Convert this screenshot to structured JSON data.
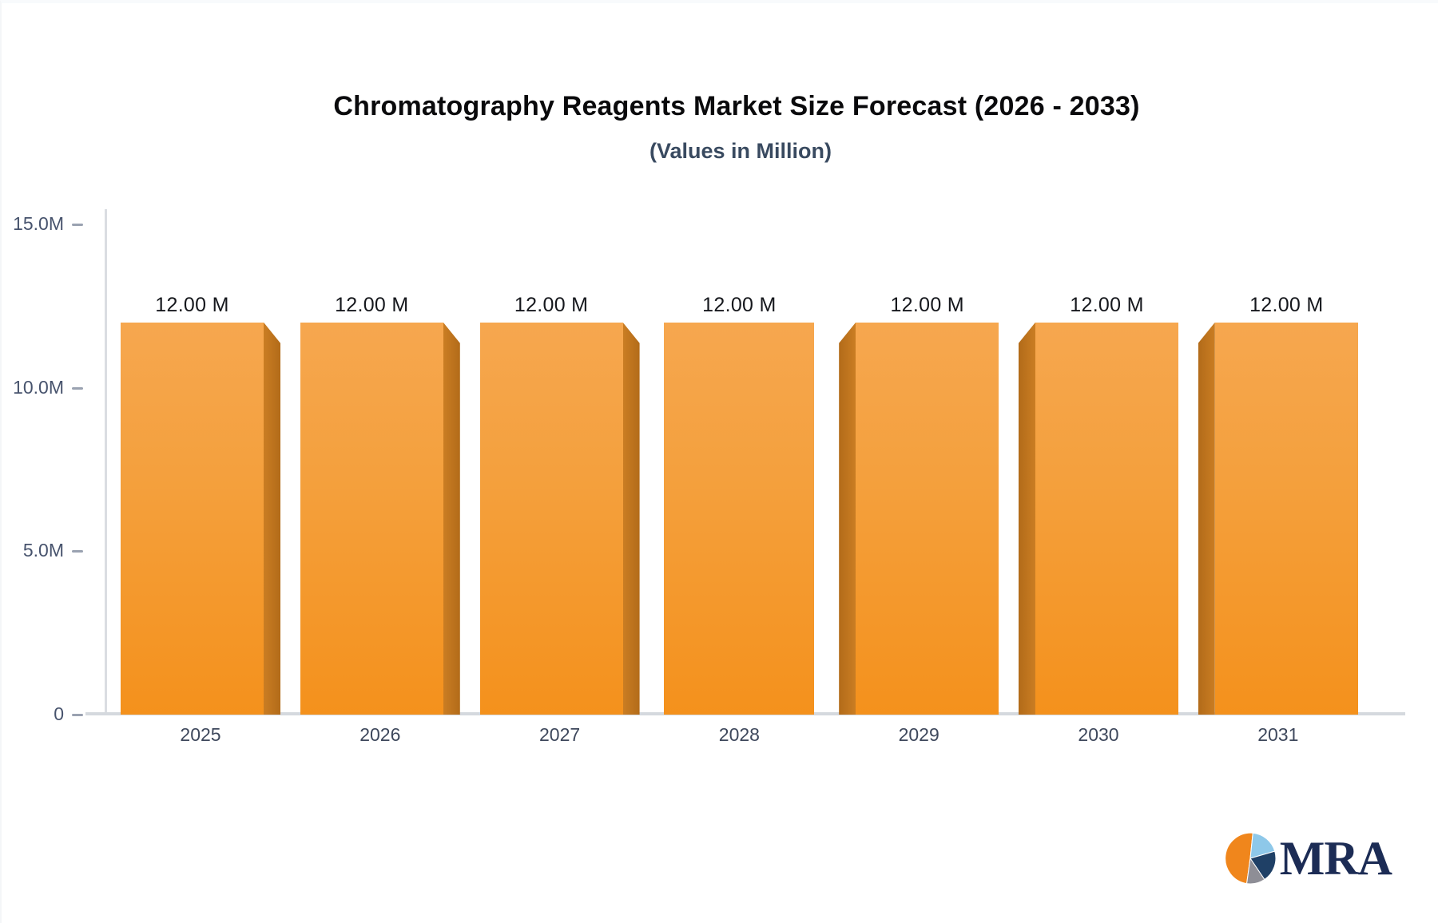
{
  "title": "Chromatography Reagents Market Size Forecast (2026 - 2033)",
  "subtitle": "(Values in Million)",
  "chart_data": {
    "type": "bar",
    "title": "Chromatography Reagents Market Size Forecast (2026 - 2033)",
    "subtitle": "(Values in Million)",
    "categories": [
      "2025",
      "2026",
      "2027",
      "2028",
      "2029",
      "2030",
      "2031"
    ],
    "values": [
      12,
      12,
      12,
      12,
      12,
      12,
      12
    ],
    "bar_labels": [
      "12.00 M",
      "12.00 M",
      "12.00 M",
      "12.00 M",
      "12.00 M",
      "12.00 M",
      "12.00 M"
    ],
    "value_unit": "M",
    "xlabel": "",
    "ylabel": "",
    "ylim": [
      0,
      15
    ],
    "yticks": [
      {
        "value": 15,
        "label": "15.0M"
      },
      {
        "value": 10,
        "label": "10.0M"
      },
      {
        "value": 5,
        "label": "5.0M"
      },
      {
        "value": 0,
        "label": "0"
      }
    ],
    "grid": false,
    "legend": "none",
    "style": "3d-perspective-bars",
    "colors": {
      "bar_face_top": "#F6A74F",
      "bar_face_bottom": "#F4911C",
      "bar_side_light": "#CA7D23",
      "bar_side_dark": "#B26B19",
      "axis_line": "#DADDE2",
      "tick_label": "#47536D",
      "value_label": "#16181D"
    }
  },
  "logo": {
    "text": "MRA",
    "icon": "pie-chart-icon",
    "colors": {
      "text_navy": "#1C2C55",
      "pie_orange": "#F0861C",
      "pie_light_blue": "#8EC8E9",
      "pie_navy": "#1F4066",
      "pie_gray": "#8E8E96"
    }
  }
}
